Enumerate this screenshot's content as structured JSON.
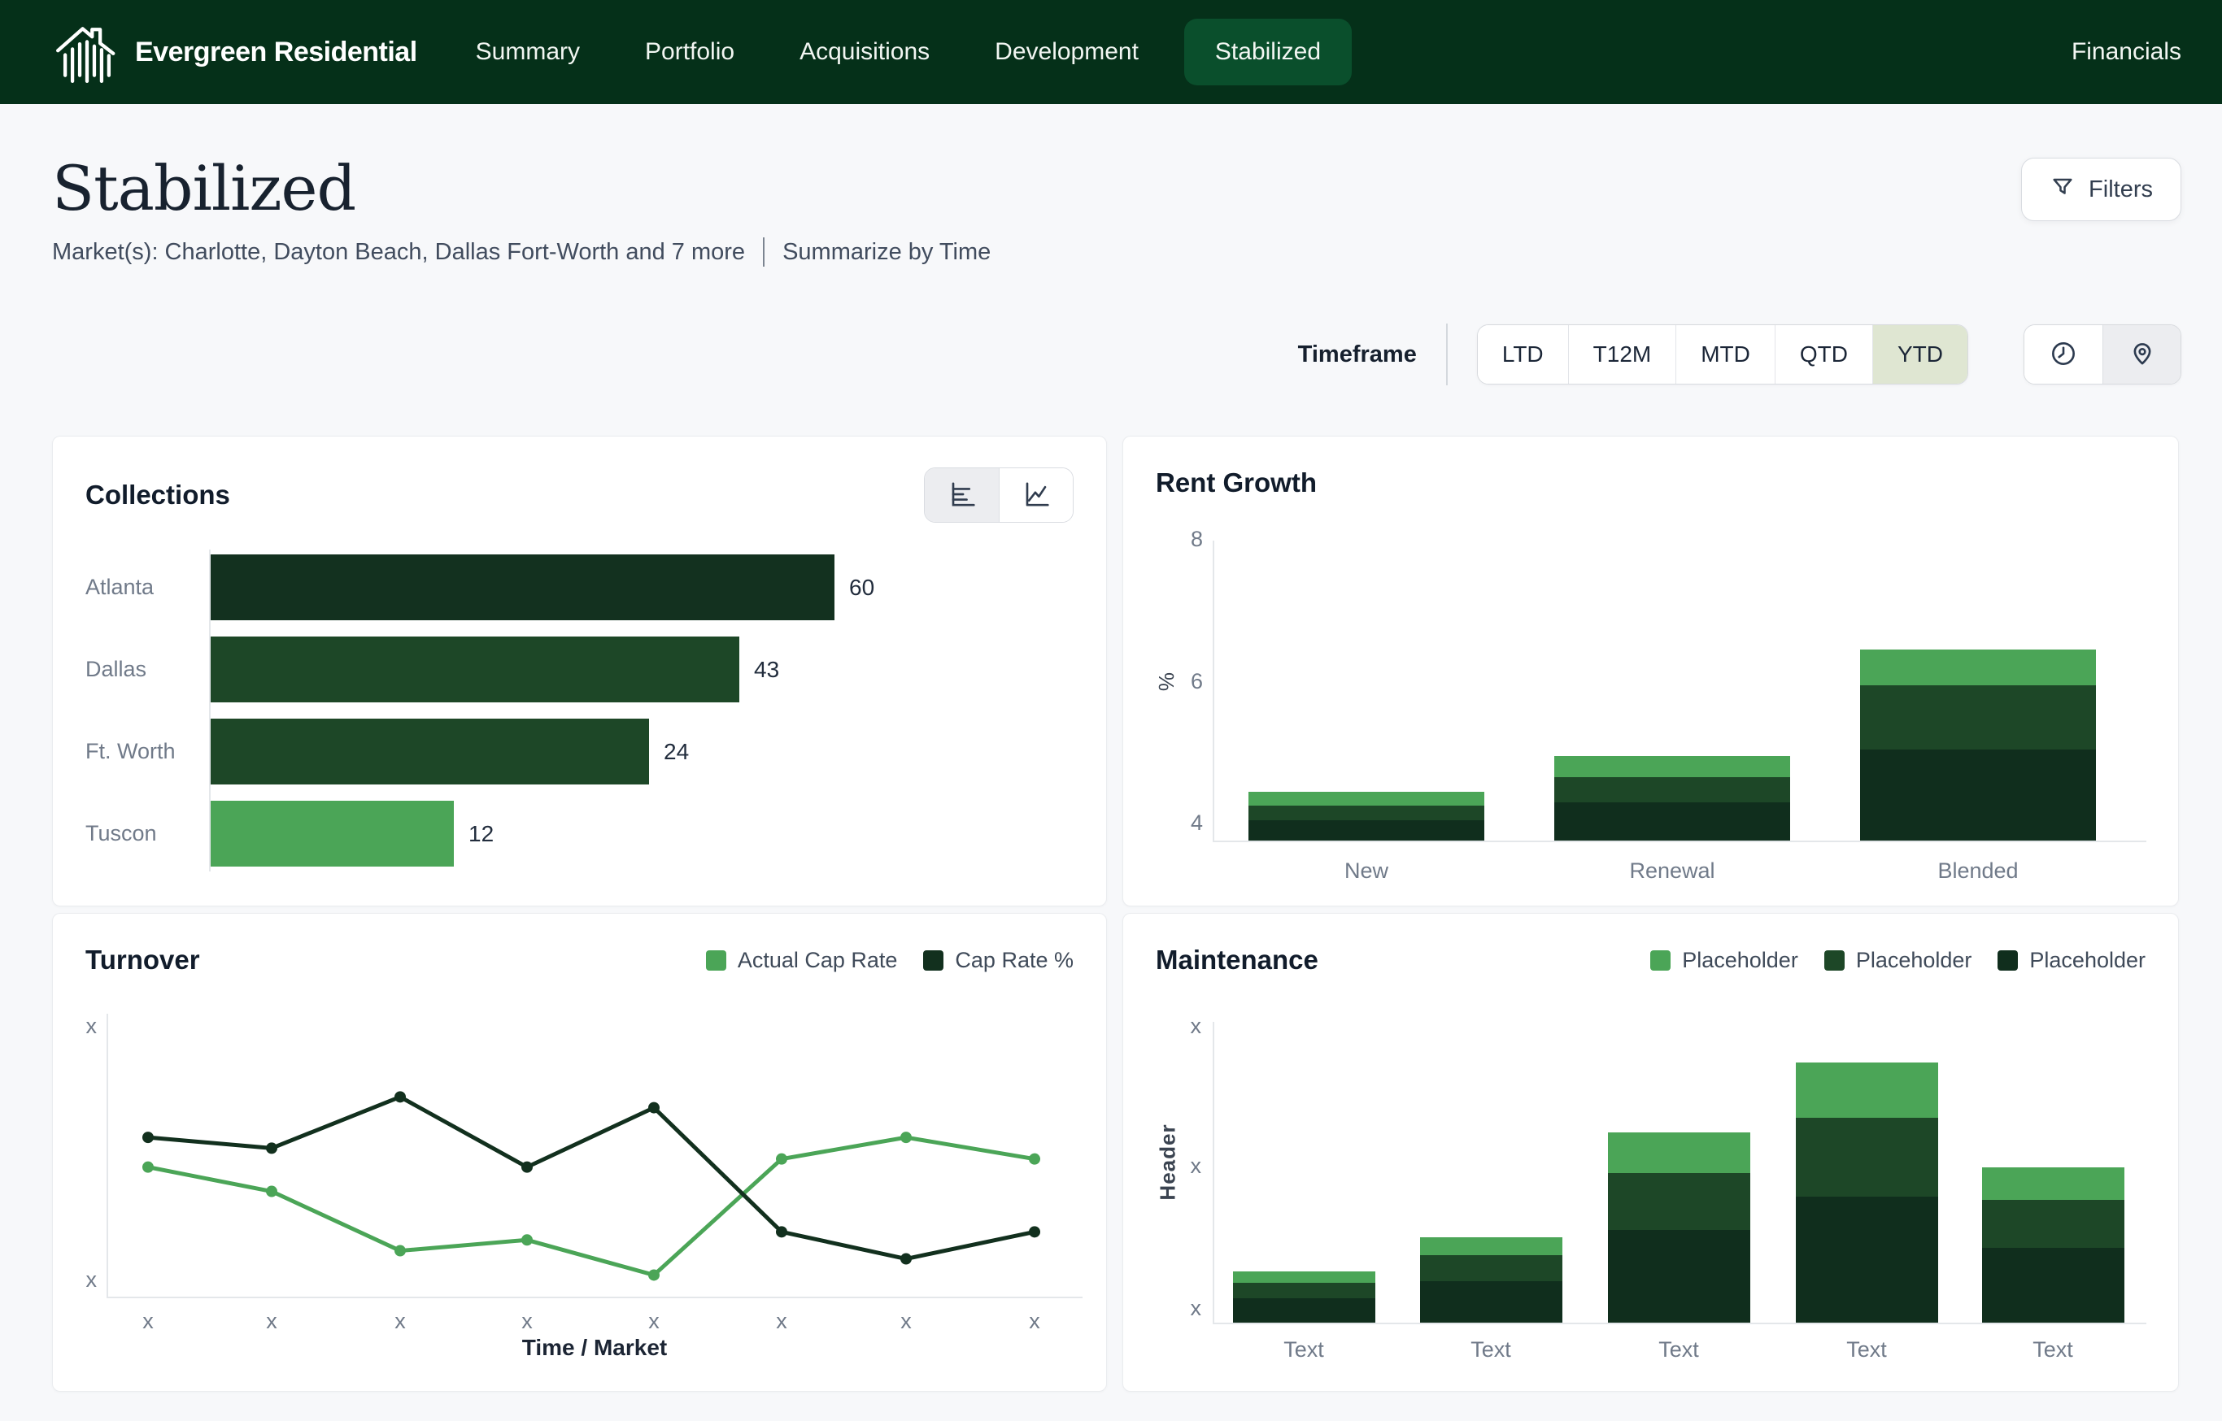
{
  "nav": {
    "brand": "Evergreen Residential",
    "items": [
      {
        "label": "Summary",
        "active": false
      },
      {
        "label": "Portfolio",
        "active": false
      },
      {
        "label": "Acquisitions",
        "active": false
      },
      {
        "label": "Development",
        "active": false
      },
      {
        "label": "Stabilized",
        "active": true
      }
    ],
    "financials": "Financials"
  },
  "page": {
    "title": "Stabilized",
    "subtitle_markets": "Market(s): Charlotte, Dayton Beach, Dallas Fort-Worth and 7 more",
    "subtitle_summary": "Summarize by Time",
    "filters_label": "Filters"
  },
  "controls": {
    "timeframe_label": "Timeframe",
    "options": [
      "LTD",
      "T12M",
      "MTD",
      "QTD",
      "YTD"
    ],
    "selected": "YTD",
    "view_toggle_icons": [
      "clock-icon",
      "location-pin-icon"
    ],
    "view_toggle_selected": "location-pin-icon"
  },
  "colors": {
    "nav_bg": "#053019",
    "nav_active_bg": "#0a4f2c",
    "page_bg": "#f7f8fa",
    "panel_border": "#eaecef",
    "green_light": "#4ba557",
    "green_mid": "#1d4727",
    "green_darkest": "#102e1d",
    "selected_segment_bg": "#dfe6d2",
    "toggle_selected_bg": "#ecedf0",
    "gray_label": "#707a89",
    "text_dark": "#16202e"
  },
  "chart_data": [
    {
      "id": "collections",
      "type": "bar",
      "orientation": "horizontal",
      "title": "Collections",
      "categories": [
        "Atlanta",
        "Dallas",
        "Ft. Worth",
        "Tuscon"
      ],
      "values": [
        60,
        43,
        24,
        12
      ],
      "bar_width_pct": [
        72.0,
        61.0,
        50.6,
        28.1
      ],
      "bar_colors": [
        "#13311f",
        "#1d4727",
        "#1d4727",
        "#4ba557"
      ],
      "view_toggle": {
        "options": [
          "bar-chart-icon",
          "line-chart-icon"
        ],
        "selected": "bar-chart-icon"
      }
    },
    {
      "id": "rent_growth",
      "type": "bar",
      "stacked": true,
      "title": "Rent Growth",
      "ylabel": "%",
      "yticks": [
        4,
        6,
        8
      ],
      "ybase": 3.76,
      "categories": [
        "New",
        "Renewal",
        "Blended"
      ],
      "series": [
        {
          "name": "dark",
          "color": "#102e1d",
          "tops": [
            4.05,
            4.3,
            5.05
          ]
        },
        {
          "name": "mid",
          "color": "#1d4727",
          "tops": [
            4.25,
            4.65,
            5.95
          ]
        },
        {
          "name": "light",
          "color": "#4ba557",
          "tops": [
            4.45,
            4.95,
            6.45
          ]
        }
      ],
      "legend_position": "none",
      "grid": false
    },
    {
      "id": "turnover",
      "type": "line",
      "title": "Turnover",
      "xlabel": "Time / Market",
      "x_tick_labels": [
        "x",
        "x",
        "x",
        "x",
        "x",
        "x",
        "x",
        "x"
      ],
      "y_tick_labels": [
        "x",
        "x"
      ],
      "y_ticks_pct": [
        6,
        100
      ],
      "series": [
        {
          "name": "Actual Cap Rate",
          "color": "#4ba557",
          "values": [
            48,
            39,
            17,
            21,
            8,
            51,
            59,
            51
          ]
        },
        {
          "name": "Cap Rate %",
          "color": "#12301e",
          "values": [
            59,
            55,
            74,
            48,
            70,
            24,
            14,
            24
          ]
        }
      ],
      "legend_position": "top-right",
      "grid": false
    },
    {
      "id": "maintenance",
      "type": "bar",
      "stacked": true,
      "title": "Maintenance",
      "ylabel": "Header",
      "legend": [
        "Placeholder",
        "Placeholder",
        "Placeholder"
      ],
      "legend_colors": [
        "#4ba557",
        "#1d4727",
        "#102e1d"
      ],
      "categories": [
        "Text",
        "Text",
        "Text",
        "Text",
        "Text"
      ],
      "y_tick_labels": [
        "x",
        "x",
        "x"
      ],
      "y_ticks_pct": [
        4.6,
        52.8,
        100
      ],
      "series": [
        {
          "name": "segment-dark",
          "color": "#102e1d",
          "values": [
            8.2,
            13.9,
            31.2,
            42.5,
            25.4
          ]
        },
        {
          "name": "segment-mid",
          "color": "#1d4727",
          "values": [
            5.3,
            8.9,
            19.4,
            26.7,
            16.0
          ]
        },
        {
          "name": "segment-light",
          "color": "#4ba557",
          "values": [
            3.8,
            6.1,
            13.6,
            18.6,
            11.2
          ]
        }
      ],
      "legend_position": "top-right",
      "grid": false
    }
  ]
}
